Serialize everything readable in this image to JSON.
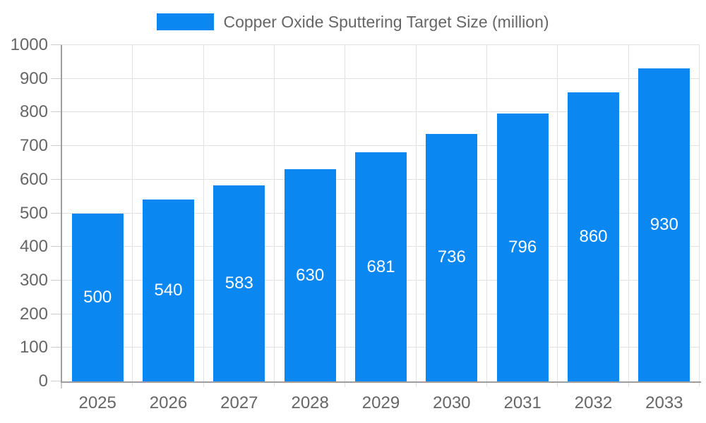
{
  "colors": {
    "bar": "#0a87f0",
    "grid": "#e2e2e2",
    "tick": "#cccccc",
    "axis": "#9e9e9e",
    "text": "#666666",
    "bar_label": "#ffffff",
    "background": "#ffffff"
  },
  "chart_data": {
    "type": "bar",
    "title": "Copper Oxide Sputtering Target Size (million)",
    "categories": [
      "2025",
      "2026",
      "2027",
      "2028",
      "2029",
      "2030",
      "2031",
      "2032",
      "2033"
    ],
    "values": [
      500,
      540,
      583,
      630,
      681,
      736,
      796,
      860,
      930
    ],
    "xlabel": "",
    "ylabel": "",
    "ylim": [
      0,
      1000
    ],
    "ytick_step": 100,
    "yticks": [
      0,
      100,
      200,
      300,
      400,
      500,
      600,
      700,
      800,
      900,
      1000
    ],
    "grid": true,
    "legend_position": "top",
    "value_label_position": "inside-center"
  }
}
